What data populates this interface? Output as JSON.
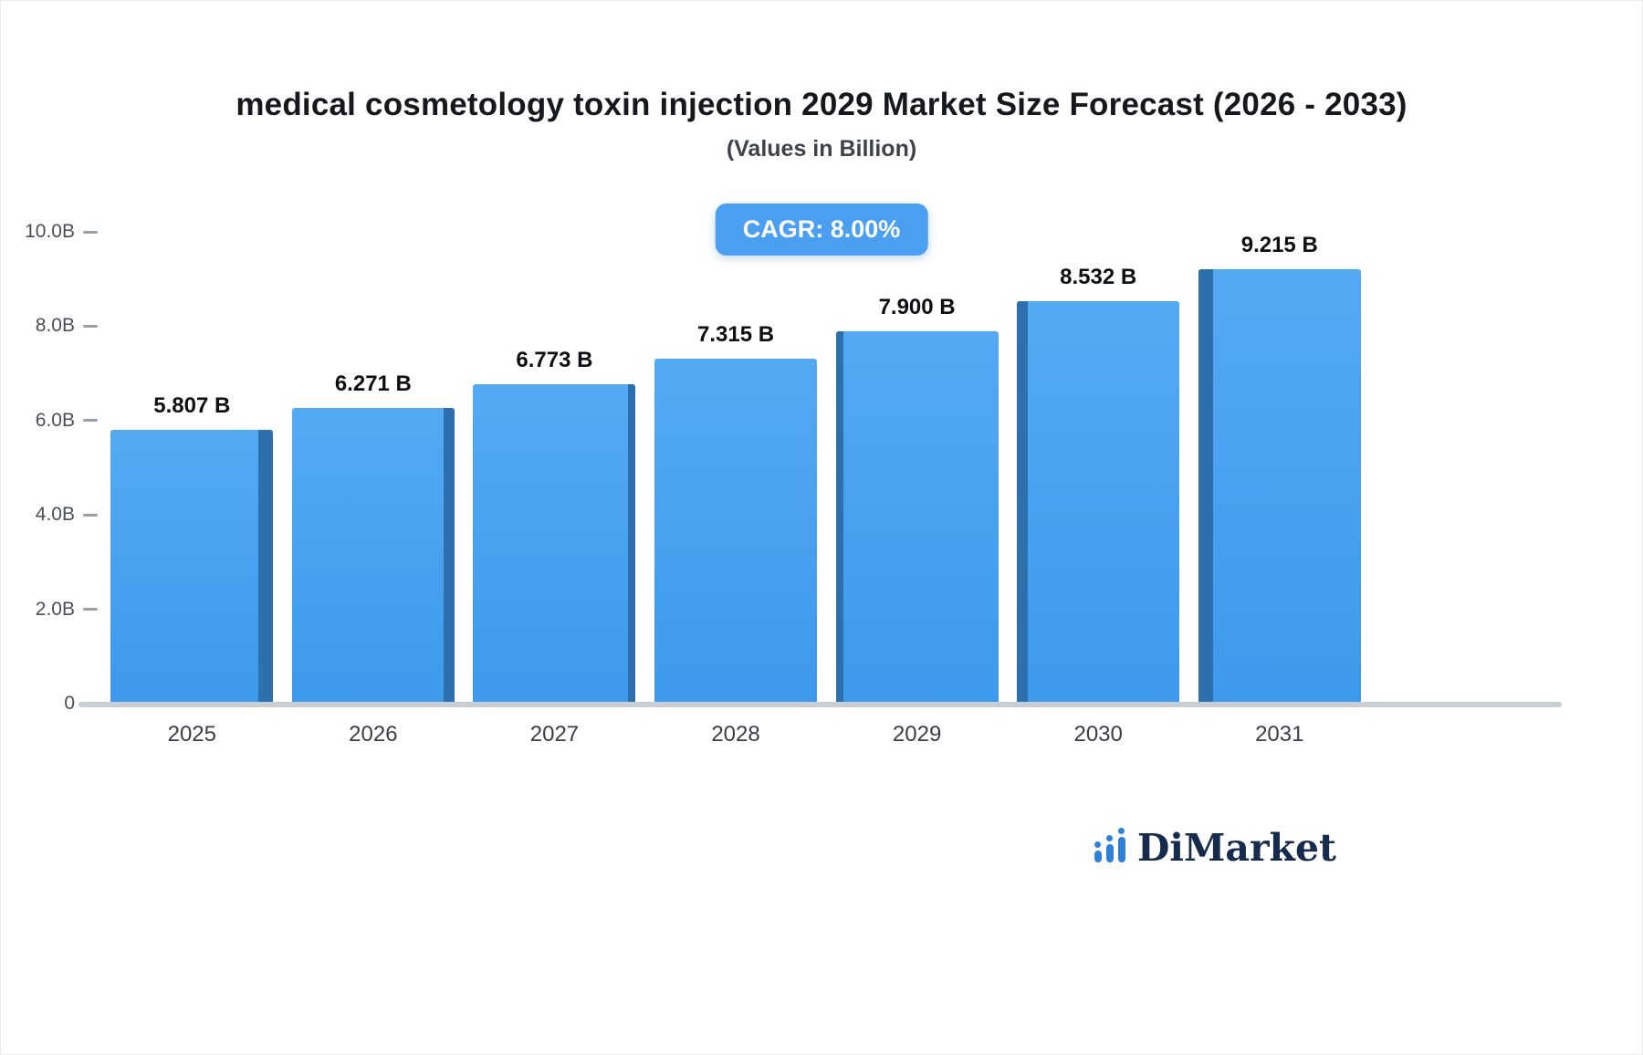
{
  "header": {
    "title": "medical cosmetology toxin injection 2029 Market Size Forecast (2026 - 2033)",
    "subtitle": "(Values in Billion)"
  },
  "badge": {
    "label": "CAGR: 8.00%",
    "color": "#4B9FF0"
  },
  "logo": {
    "text": "DiMarket",
    "text_color": "#172B4D",
    "icon_color": "#2F80D8"
  },
  "chart_data": {
    "type": "bar",
    "title": "medical cosmetology toxin injection 2029 Market Size Forecast (2026 - 2033)",
    "subtitle": "(Values in Billion)",
    "cagr_label": "CAGR: 8.00%",
    "categories": [
      "2025",
      "2026",
      "2027",
      "2028",
      "2029",
      "2030",
      "2031"
    ],
    "values": [
      5.807,
      6.271,
      6.773,
      7.315,
      7.9,
      8.532,
      9.215
    ],
    "value_labels": [
      "5.807 B",
      "6.271 B",
      "6.773 B",
      "7.315 B",
      "7.900 B",
      "8.532 B",
      "9.215 B"
    ],
    "ylim": [
      0,
      10
    ],
    "yticks": [
      {
        "value": 10,
        "label": "10.0B"
      },
      {
        "value": 8,
        "label": "8.0B"
      },
      {
        "value": 6,
        "label": "6.0B"
      },
      {
        "value": 4,
        "label": "4.0B"
      },
      {
        "value": 2,
        "label": "2.0B"
      },
      {
        "value": 0,
        "label": "0"
      }
    ],
    "grid": false,
    "legend": "none",
    "bar_color_top": "#54A9F3",
    "bar_color_bottom": "#3D99EC",
    "bar_side_color": "#2E6FAE",
    "axis_color": "#C9CED4"
  }
}
